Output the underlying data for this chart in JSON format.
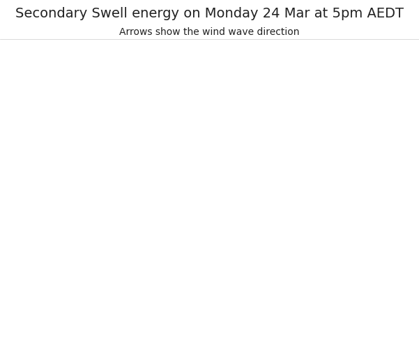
{
  "title": "Secondary Swell energy on Monday 24 Mar at 5pm AEDT",
  "subtitle": "Arrows show the wind wave direction",
  "title_fontsize": 14,
  "subtitle_fontsize": 10,
  "title_color": "#222222",
  "background_color": "#000000",
  "header_bg": "#f0f0f0",
  "map_extent": [
    100,
    185,
    -65,
    -5
  ],
  "fig_width": 6.01,
  "fig_height": 4.87,
  "dpi": 100
}
